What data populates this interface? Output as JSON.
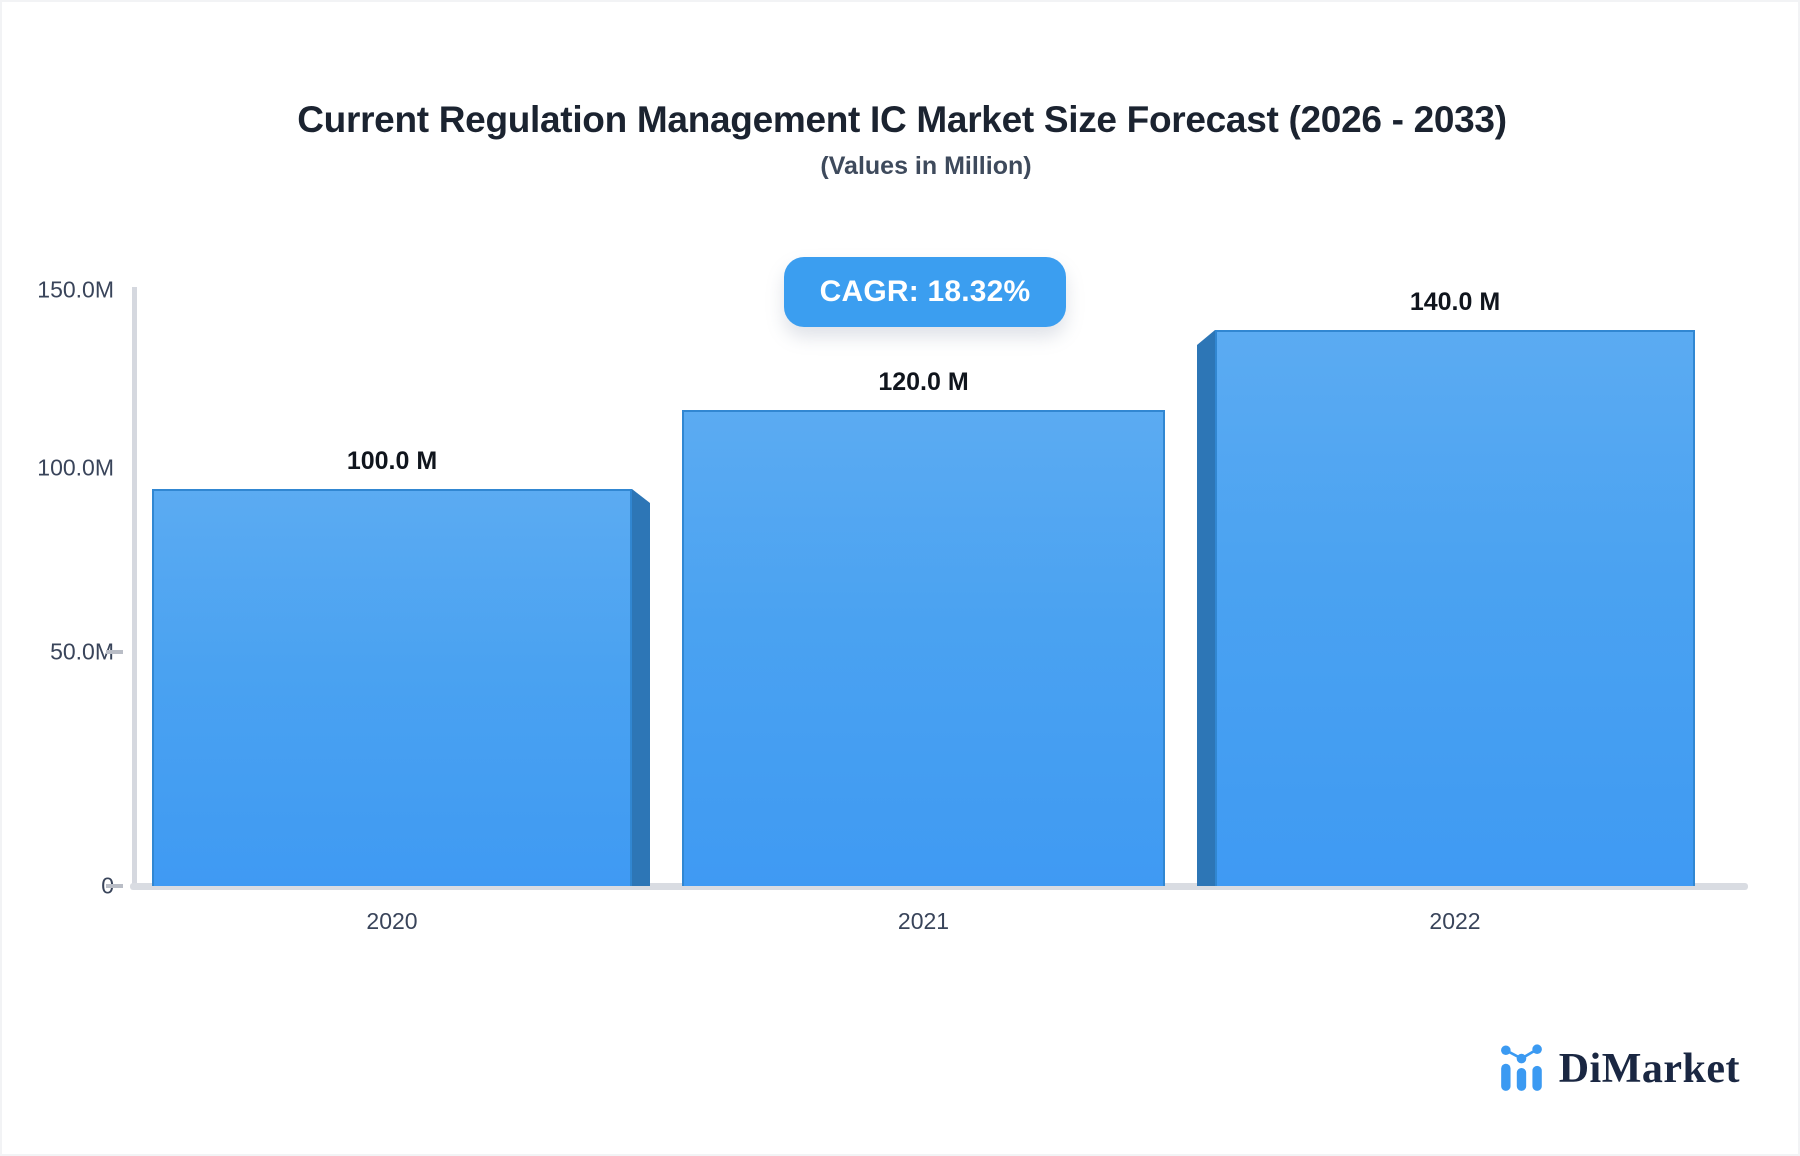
{
  "header": {
    "title": "Current Regulation Management IC Market Size Forecast (2026 - 2033)",
    "subtitle": "(Values in Million)"
  },
  "badge": {
    "label": "CAGR: 18.32%",
    "cagr_percent": 18.32,
    "background_color": "#3b9ef0",
    "text_color": "#ffffff"
  },
  "chart_data": {
    "type": "bar",
    "categories": [
      "2020",
      "2021",
      "2022"
    ],
    "values": [
      100.0,
      120.0,
      140.0
    ],
    "value_labels": [
      "100.0 M",
      "120.0 M",
      "140.0 M"
    ],
    "title": "Current Regulation Management IC Market Size Forecast (2026 - 2033)",
    "subtitle": "(Values in Million)",
    "xlabel": "",
    "ylabel": "",
    "unit": "Million",
    "ylim": [
      0,
      150
    ],
    "y_ticks": [
      "150.0M",
      "100.0M",
      "50.0M",
      "0"
    ],
    "grid": false,
    "legend_position": "none",
    "bar_color_top": "#5babf2",
    "bar_color_bottom": "#3f9af3",
    "bar_side_3d_color": "#2d76b6",
    "bar_border_color": "#3187d2",
    "axis_color": "#d5d8df"
  },
  "logo": {
    "text": "DiMarket",
    "icon": "mini-bar-line-chart-icon",
    "icon_color": "#3b9af2",
    "text_color": "#1a2742"
  }
}
